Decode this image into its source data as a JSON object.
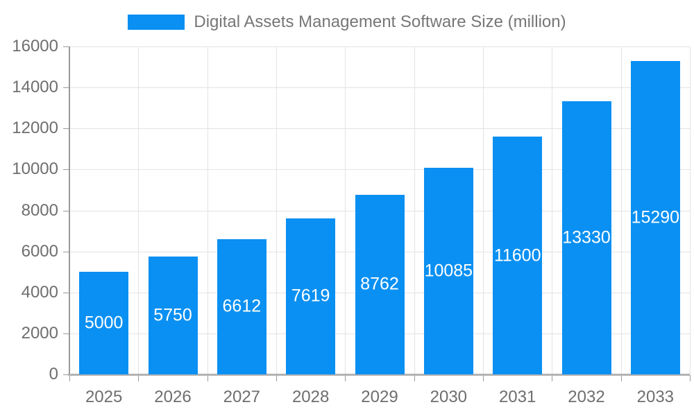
{
  "legend": {
    "label": "Digital Assets Management Software Size (million)"
  },
  "colors": {
    "bar": "#0a90f2",
    "grid": "#e3e3e3",
    "axis": "#9a9a9a",
    "axis_bottom": "#b3b3b3",
    "tick_label": "#6e6e6e",
    "legend_text": "#767676",
    "bar_label": "#ffffff",
    "background": "#ffffff"
  },
  "chart_data": {
    "type": "bar",
    "title": "Digital Assets Management Software Size (million)",
    "categories": [
      "2025",
      "2026",
      "2027",
      "2028",
      "2029",
      "2030",
      "2031",
      "2032",
      "2033"
    ],
    "values": [
      5000,
      5750,
      6612,
      7619,
      8762,
      10085,
      11600,
      13330,
      15290
    ],
    "xlabel": "",
    "ylabel": "",
    "ylim": [
      0,
      16000
    ],
    "yticks": [
      0,
      2000,
      4000,
      6000,
      8000,
      10000,
      12000,
      14000,
      16000
    ],
    "grid": true,
    "legend_position": "top",
    "bar_label_position": "center"
  }
}
